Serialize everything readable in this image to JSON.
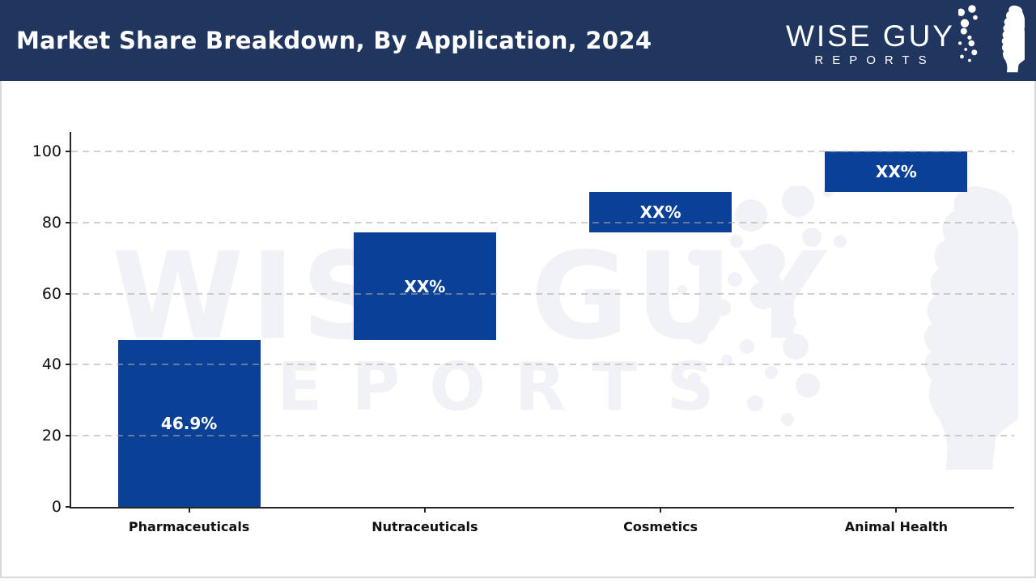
{
  "header": {
    "title": "Market Share Breakdown, By Application, 2024",
    "logo": {
      "brand": "WISE GUY",
      "sub": "REPORTS"
    }
  },
  "watermark": {
    "brand": "WISE GUY",
    "sub": "REPORTS"
  },
  "colors": {
    "header_bg": "#21365f",
    "bar": "#0a4197",
    "axis": "#262626",
    "grid": "#d9d9d9",
    "watermark": "#f1f2f5",
    "bar_label_text": "#ffffff",
    "frame_border": "#d9d9d9"
  },
  "chart_data": {
    "type": "bar",
    "subtype": "waterfall",
    "title": "Market Share Breakdown, By Application, 2024",
    "categories": [
      "Pharmaceuticals",
      "Nutraceuticals",
      "Cosmetics",
      "Animal Health"
    ],
    "segments": [
      {
        "category": "Pharmaceuticals",
        "base": 0,
        "top": 46.9,
        "size": 46.9,
        "label": "46.9%"
      },
      {
        "category": "Nutraceuticals",
        "base": 46.9,
        "top": 77.2,
        "size": 30.3,
        "label": "XX%"
      },
      {
        "category": "Cosmetics",
        "base": 77.2,
        "top": 88.7,
        "size": 11.5,
        "label": "XX%"
      },
      {
        "category": "Animal Health",
        "base": 88.7,
        "top": 100,
        "size": 11.3,
        "label": "XX%"
      }
    ],
    "yticks": [
      0,
      20,
      40,
      60,
      80,
      100
    ],
    "ylim": [
      0,
      106
    ],
    "xlabel": "",
    "ylabel": "",
    "grid": "dashed-horizontal",
    "legend": "none",
    "bar_color": "#0a4197",
    "value_labels_inside_bars": true
  }
}
